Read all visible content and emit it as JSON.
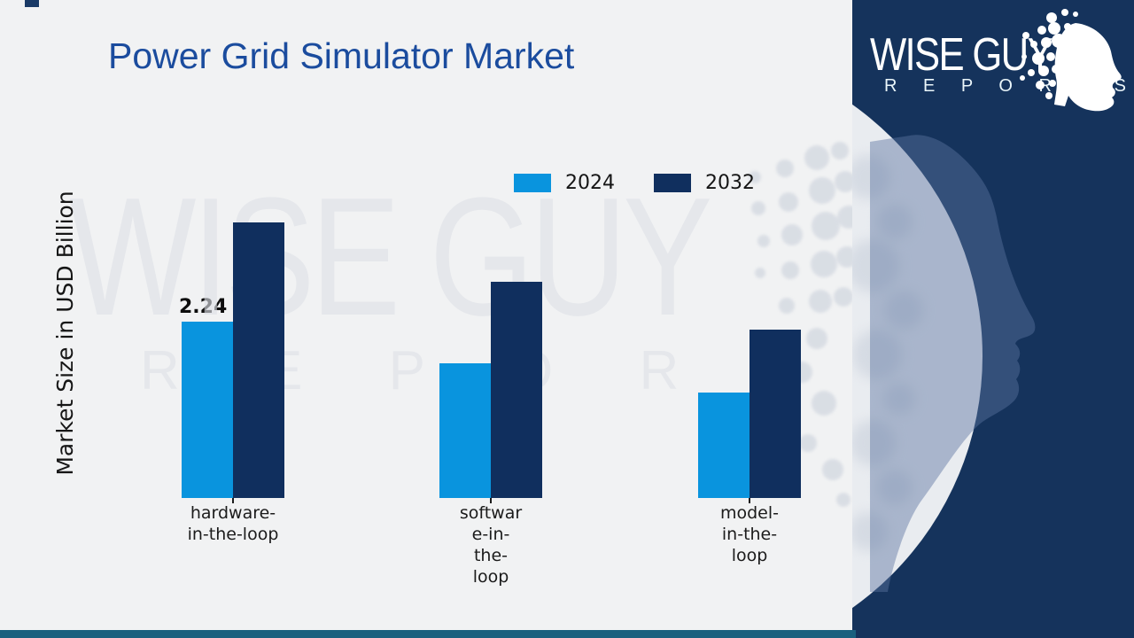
{
  "header": {
    "title": "Power Grid Simulator Market"
  },
  "watermark": {
    "line1": "WISE GUY",
    "line2": "R E P O R T S"
  },
  "brand": {
    "name": "WISE GUY",
    "sub": "R E P O R T S"
  },
  "chart_data": {
    "type": "bar",
    "title": "Power Grid Simulator Market",
    "xlabel": "",
    "ylabel": "Market Size in USD Billion",
    "categories": [
      "hardware-in-the-loop",
      "software-in-the-loop",
      "model-in-the-loop"
    ],
    "category_display": [
      "hardware-\nin-the-loop",
      "softwar\ne-in-\nthe-\nloop",
      "model-\nin-the-\nloop"
    ],
    "series": [
      {
        "name": "2024",
        "color": "#0994de",
        "values": [
          2.24,
          1.71,
          1.34
        ]
      },
      {
        "name": "2032",
        "color": "#102f5e",
        "values": [
          3.5,
          2.75,
          2.14
        ]
      }
    ],
    "value_labels": [
      {
        "series": 0,
        "group": 0,
        "text": "2.24"
      }
    ],
    "ylim": [
      0,
      3.8
    ],
    "legend_position": "top-center",
    "grid": false
  },
  "colors": {
    "accent_blue": "#0994de",
    "navy": "#102f5e",
    "panel_navy": "#15335c",
    "teal_strip": "#1a607e",
    "title_blue": "#1b4c9e",
    "watermark_gray": "#dfe2e8"
  }
}
